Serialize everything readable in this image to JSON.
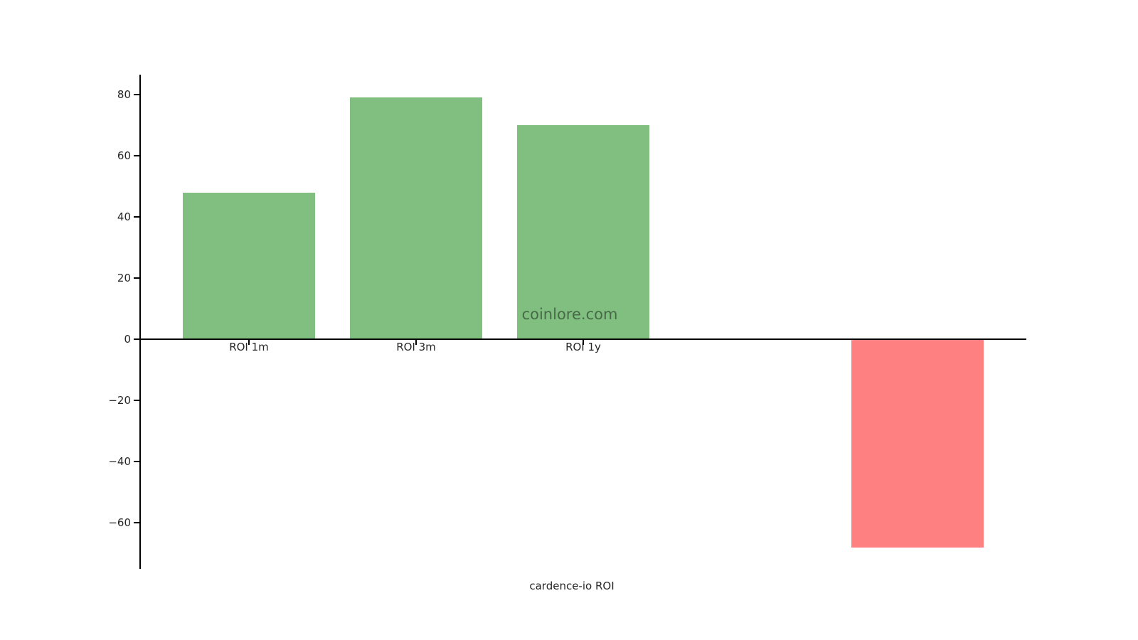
{
  "chart_data": {
    "type": "bar",
    "title": "cardence-io ROI",
    "watermark": "coinlore.com",
    "categories": [
      "ROI 1m",
      "ROI 3m",
      "ROI 1y",
      "",
      ""
    ],
    "values": [
      48,
      79,
      70,
      null,
      -68
    ],
    "bar_colors": [
      "#80bf80",
      "#80bf80",
      "#80bf80",
      null,
      "#ff8080"
    ],
    "series_note": "green bars = positive ROI, red bar = negative ROI (unlabeled)",
    "yticks": [
      {
        "label": "80",
        "value": 80
      },
      {
        "label": "60",
        "value": 60
      },
      {
        "label": "40",
        "value": 40
      },
      {
        "label": "20",
        "value": 20
      },
      {
        "label": "0",
        "value": 0
      },
      {
        "label": "−20",
        "value": -20
      },
      {
        "label": "−40",
        "value": -40
      },
      {
        "label": "−60",
        "value": -60
      }
    ],
    "ylim": [
      -77,
      87
    ],
    "xlabel": "",
    "ylabel": "",
    "grid": false,
    "legend_position": "none",
    "positive_color": "#80bf80",
    "negative_color": "#ff8080",
    "axis_color": "#000000",
    "text_color": "#262626",
    "background_color": "#ffffff"
  }
}
